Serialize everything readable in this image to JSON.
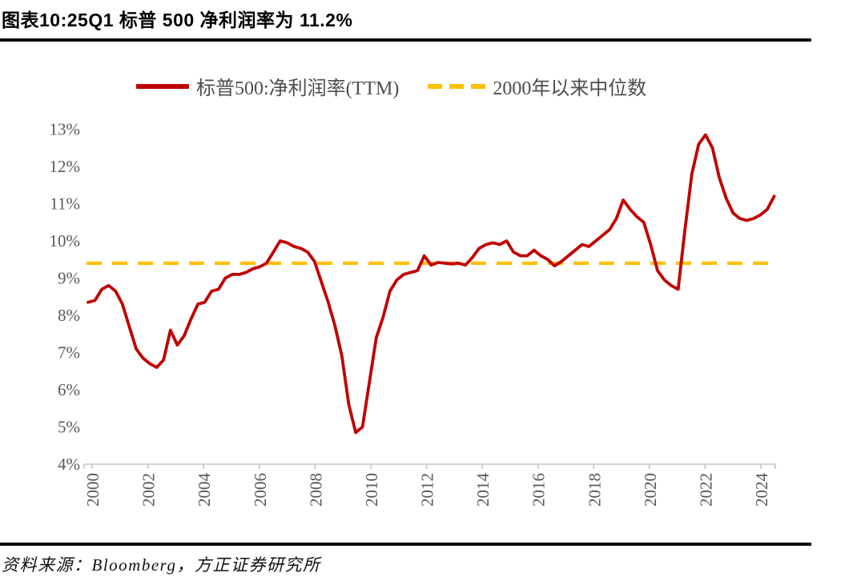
{
  "header": {
    "title": "图表10:25Q1 标普 500 净利润率为 11.2%"
  },
  "legend": {
    "items": [
      {
        "label": "标普500:净利润率(TTM)",
        "color": "#C00000",
        "style": "solid"
      },
      {
        "label": "2000年以来中位数",
        "color": "#FFC000",
        "style": "dashed"
      }
    ]
  },
  "chart_data": {
    "type": "line",
    "title": "图表10:25Q1 标普 500 净利润率为 11.2%",
    "x_start": "2000Q1",
    "x_end": "2025Q1",
    "frequency": "quarterly",
    "ylim": [
      4,
      13
    ],
    "ytick_step": 1,
    "grid": false,
    "legend_position": "top",
    "y_tick_labels": [
      "13%",
      "12%",
      "11%",
      "10%",
      "9%",
      "8%",
      "7%",
      "6%",
      "5%",
      "4%"
    ],
    "x_tick_labels": [
      "2000",
      "2002",
      "2004",
      "2006",
      "2008",
      "2010",
      "2012",
      "2014",
      "2016",
      "2018",
      "2020",
      "2022",
      "2024"
    ],
    "series": [
      {
        "name": "标普500:净利润率(TTM)",
        "color": "#C00000",
        "style": "solid",
        "values": [
          8.35,
          8.4,
          8.7,
          8.8,
          8.65,
          8.3,
          7.7,
          7.1,
          6.85,
          6.7,
          6.6,
          6.8,
          7.6,
          7.2,
          7.45,
          7.9,
          8.3,
          8.35,
          8.65,
          8.7,
          9.0,
          9.1,
          9.1,
          9.15,
          9.25,
          9.3,
          9.4,
          9.7,
          10.0,
          9.95,
          9.85,
          9.8,
          9.7,
          9.45,
          8.9,
          8.35,
          7.7,
          6.9,
          5.6,
          4.85,
          5.0,
          6.2,
          7.4,
          7.95,
          8.65,
          8.95,
          9.1,
          9.15,
          9.2,
          9.6,
          9.35,
          9.42,
          9.4,
          9.38,
          9.4,
          9.35,
          9.55,
          9.8,
          9.9,
          9.95,
          9.9,
          10.0,
          9.7,
          9.6,
          9.6,
          9.75,
          9.6,
          9.5,
          9.33,
          9.45,
          9.6,
          9.75,
          9.9,
          9.85,
          10.0,
          10.15,
          10.3,
          10.6,
          11.1,
          10.85,
          10.65,
          10.5,
          9.9,
          9.2,
          8.95,
          8.8,
          8.7,
          10.3,
          11.8,
          12.6,
          12.85,
          12.5,
          11.7,
          11.15,
          10.75,
          10.6,
          10.55,
          10.6,
          10.7,
          10.85,
          11.2
        ]
      },
      {
        "name": "2000年以来中位数",
        "color": "#FFC000",
        "style": "dashed",
        "value": 9.4
      }
    ]
  },
  "footer": {
    "source": "资料来源：Bloomberg，方正证券研究所"
  }
}
